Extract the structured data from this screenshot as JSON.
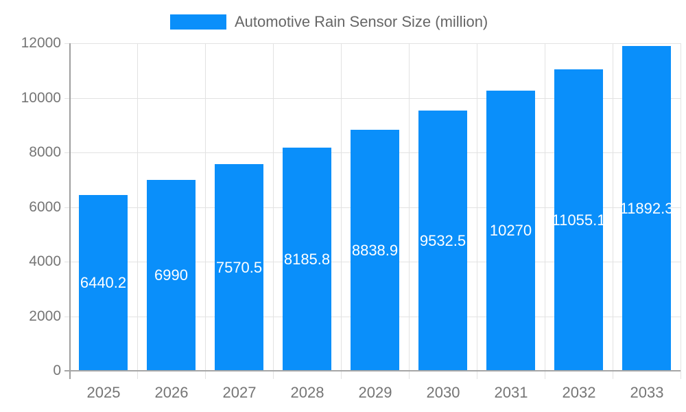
{
  "legend": {
    "label": "Automotive Rain Sensor Size (million)"
  },
  "chart_data": {
    "type": "bar",
    "title": "Automotive Rain Sensor Size (million)",
    "categories": [
      "2025",
      "2026",
      "2027",
      "2028",
      "2029",
      "2030",
      "2031",
      "2032",
      "2033"
    ],
    "values": [
      6440.2,
      6990,
      7570.5,
      8185.8,
      8838.9,
      9532.5,
      10270,
      11055.1,
      11892.3
    ],
    "xlabel": "",
    "ylabel": "",
    "ylim": [
      0,
      12000
    ],
    "yticks": [
      0,
      2000,
      4000,
      6000,
      8000,
      10000,
      12000
    ],
    "grid": true,
    "legend_position": "top",
    "bar_color": "#0a8ffa",
    "data_label_color": "#ffffff"
  }
}
